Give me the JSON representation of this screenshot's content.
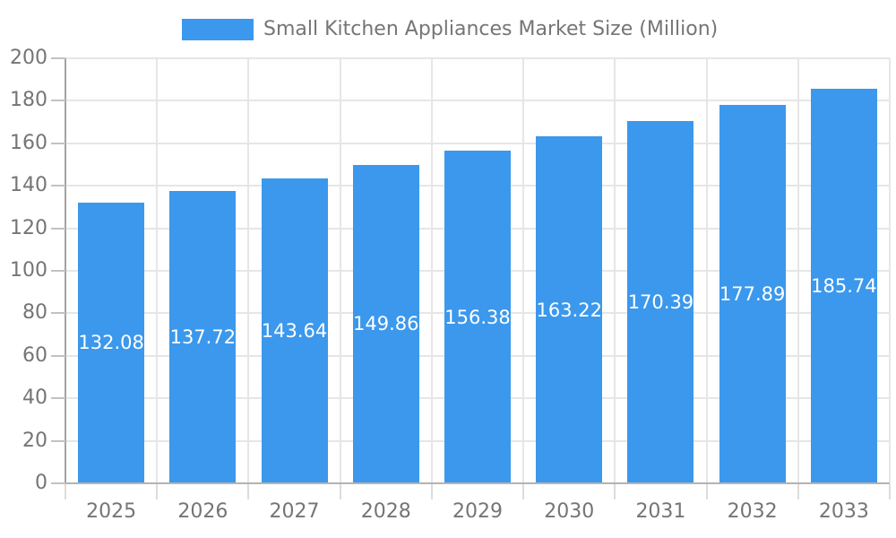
{
  "chart_data": {
    "type": "bar",
    "title": "Small Kitchen Appliances Market Size (Million)",
    "series_name": "Small Kitchen Appliances Market Size (Million)",
    "categories": [
      "2025",
      "2026",
      "2027",
      "2028",
      "2029",
      "2030",
      "2031",
      "2032",
      "2033"
    ],
    "values": [
      132.08,
      137.72,
      143.64,
      149.86,
      156.38,
      163.22,
      170.39,
      177.89,
      185.74
    ],
    "value_labels": [
      "132.08",
      "137.72",
      "143.64",
      "149.86",
      "156.38",
      "163.22",
      "170.39",
      "177.89",
      "185.74"
    ],
    "xlabel": "",
    "ylabel": "",
    "ylim": [
      0,
      200
    ],
    "ytick_step": 20,
    "ytick_labels": [
      "0",
      "20",
      "40",
      "60",
      "80",
      "100",
      "120",
      "140",
      "160",
      "180",
      "200"
    ],
    "grid": true,
    "legend_position": "top",
    "value_label_position": "inside-center",
    "colors": {
      "bar": "#3b98ec",
      "value_label": "#ffffff",
      "axis_text": "#757575",
      "legend_text": "#757575",
      "gridline": "#e6e6e6",
      "y_axis_line": "#a3a3a3",
      "x_axis_line": "#b3b3b3",
      "y_tick": "#c2c2c2",
      "x_tick": "#dcdcdc",
      "background": "#ffffff"
    }
  }
}
